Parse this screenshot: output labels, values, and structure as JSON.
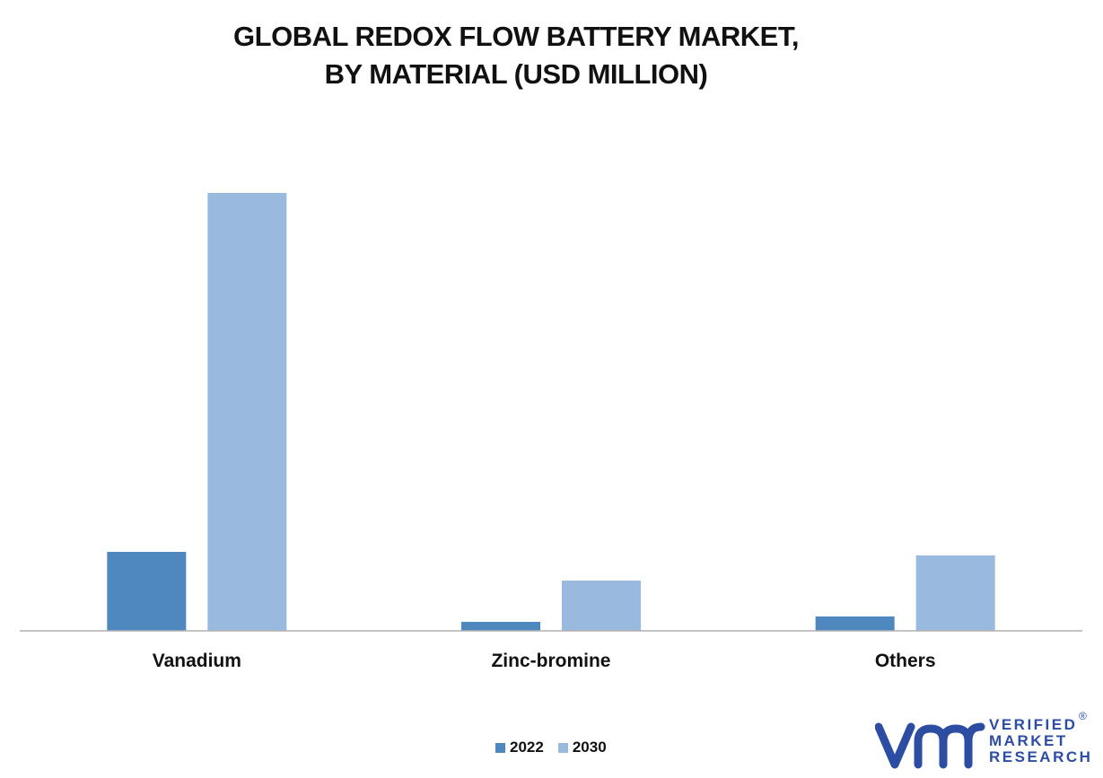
{
  "title_lines": [
    "GLOBAL REDOX FLOW BATTERY MARKET,",
    "BY MATERIAL (USD MILLION)"
  ],
  "chart_data": {
    "type": "bar",
    "title": "GLOBAL REDOX FLOW BATTERY MARKET, BY MATERIAL (USD MILLION)",
    "categories": [
      "Vanadium",
      "Zinc-bromine",
      "Others"
    ],
    "series": [
      {
        "name": "2022",
        "color": "#4e88bf",
        "values": [
          88,
          10,
          16
        ]
      },
      {
        "name": "2030",
        "color": "#99b9df",
        "values": [
          488,
          56,
          84
        ]
      }
    ],
    "ylim": [
      0,
      500
    ],
    "y_axis_visible": false,
    "grid": false,
    "legend": "bottom-center"
  },
  "logo": {
    "lines": [
      "VERIFIED",
      "MARKET",
      "RESEARCH"
    ],
    "registered": "®",
    "icon": "vmr-logo-icon",
    "color": "#2d4da3"
  }
}
